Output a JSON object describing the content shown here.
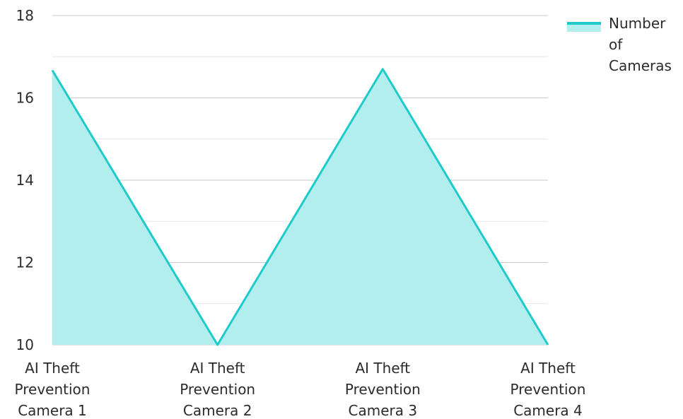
{
  "chart_data": {
    "type": "area",
    "categories": [
      [
        "AI Theft",
        "Prevention",
        "Camera 1"
      ],
      [
        "AI Theft",
        "Prevention",
        "Camera 2"
      ],
      [
        "AI Theft",
        "Prevention",
        "Camera 3"
      ],
      [
        "AI Theft",
        "Prevention",
        "Camera 4"
      ]
    ],
    "series": [
      {
        "name": "Number of Cameras",
        "legend_lines": [
          "Number",
          "of",
          "Cameras"
        ],
        "values": [
          16.67,
          10,
          16.7,
          10
        ]
      }
    ],
    "ylim": [
      10,
      18
    ],
    "yticks": [
      "10",
      "12",
      "14",
      "16",
      "18"
    ],
    "grid": true,
    "legend_position": "top-right",
    "colors": {
      "line": "#1ecbca",
      "fill": "#b2eeee",
      "grid_major": "#c8c8c8",
      "grid_minor": "#e6e6e6",
      "text": "#2b2b2b"
    }
  }
}
